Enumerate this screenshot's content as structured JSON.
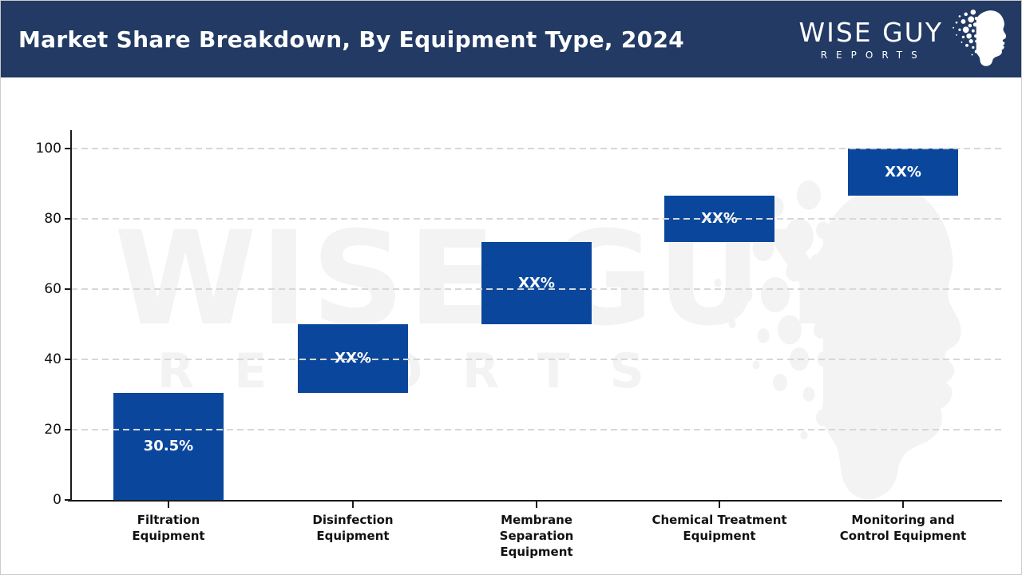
{
  "header": {
    "title": "Market Share Breakdown, By Equipment Type, 2024",
    "logo": {
      "name": "WISE GUY",
      "sub": "REPORTS"
    }
  },
  "watermark": {
    "name": "WISE GUY",
    "sub": "REPORTS"
  },
  "colors": {
    "header_bg": "#223a64",
    "bar": "#0a479c",
    "grid": "#d7d7d7",
    "axis": "#1a1a1a",
    "text": "#111111",
    "bar_label": "#ffffff",
    "watermark": "#f3f3f3"
  },
  "chart_data": {
    "type": "bar",
    "subtype": "waterfall",
    "title": "Market Share Breakdown, By Equipment Type, 2024",
    "xlabel": "",
    "ylabel": "",
    "ylim": [
      0,
      105
    ],
    "yticks": [
      0,
      20,
      40,
      60,
      80,
      100
    ],
    "grid": {
      "horizontal": true,
      "style": "dashed"
    },
    "legend": "none",
    "categories": [
      "Filtration Equipment",
      "Disinfection Equipment",
      "Membrane Separation Equipment",
      "Chemical Treatment Equipment",
      "Monitoring and Control Equipment"
    ],
    "segments": [
      {
        "category": "Filtration Equipment",
        "category_lines": [
          "Filtration",
          "Equipment"
        ],
        "start": 0,
        "end": 30.5,
        "value": 30.5,
        "label": "30.5%"
      },
      {
        "category": "Disinfection Equipment",
        "category_lines": [
          "Disinfection",
          "Equipment"
        ],
        "start": 30.5,
        "end": 50,
        "value": 19.5,
        "label": "XX%"
      },
      {
        "category": "Membrane Separation Equipment",
        "category_lines": [
          "Membrane",
          "Separation",
          "Equipment"
        ],
        "start": 50,
        "end": 73.5,
        "value": 23.5,
        "label": "XX%"
      },
      {
        "category": "Chemical Treatment Equipment",
        "category_lines": [
          "Chemical Treatment",
          "Equipment"
        ],
        "start": 73.5,
        "end": 86.5,
        "value": 13,
        "label": "XX%"
      },
      {
        "category": "Monitoring and Control Equipment",
        "category_lines": [
          "Monitoring and",
          "Control Equipment"
        ],
        "start": 86.5,
        "end": 100,
        "value": 13.5,
        "label": "XX%"
      }
    ]
  }
}
